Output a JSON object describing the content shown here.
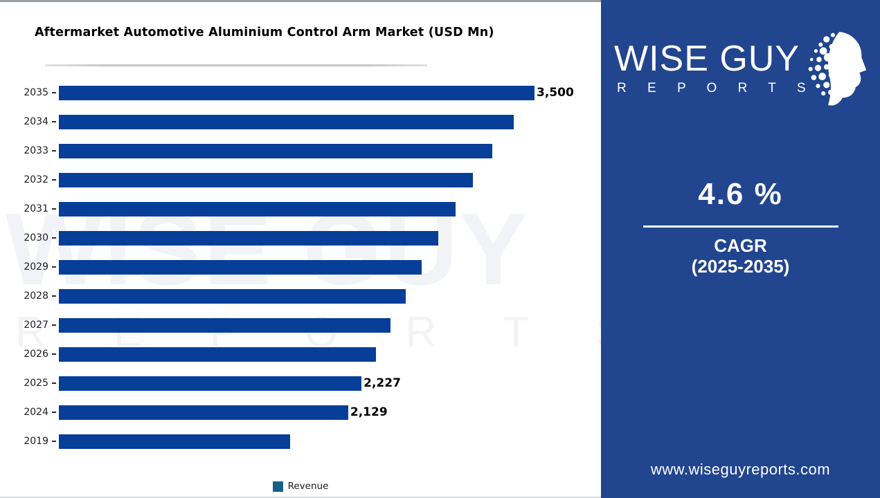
{
  "header": {
    "title": "Aftermarket Automotive Aluminium Control Arm Market (USD Mn)"
  },
  "chart_data": {
    "type": "bar",
    "orientation": "horizontal",
    "title": "Aftermarket Automotive Aluminium Control Arm Market (USD Mn)",
    "xlabel": "",
    "ylabel": "",
    "categories": [
      "2035",
      "2034",
      "2033",
      "2032",
      "2031",
      "2030",
      "2029",
      "2028",
      "2027",
      "2026",
      "2025",
      "2024",
      "2019"
    ],
    "series": [
      {
        "name": "Revenue",
        "values": [
          3500,
          3347,
          3191,
          3048,
          2919,
          2791,
          2668,
          2551,
          2439,
          2332,
          2227,
          2129,
          1702
        ]
      }
    ],
    "data_labels": [
      "3,500",
      "",
      "",
      "",
      "",
      "",
      "",
      "",
      "",
      "",
      "2,227",
      "2,129",
      ""
    ],
    "xlim": [
      0,
      3500
    ],
    "grid": "off",
    "bar_color": "#063E98",
    "legend": {
      "label": "Revenue",
      "color": "#166183",
      "position": "bottom-center"
    }
  },
  "side_panel": {
    "background_color": "#21458E",
    "brand": {
      "line1": "WISE GUY",
      "line2": "R E P O R T S"
    },
    "cagr_value": "4.6 %",
    "cagr_line1": "CAGR",
    "cagr_line2": "(2025-2035)",
    "website": "www.wiseguyreports.com"
  },
  "watermark": {
    "line1": "WISE GUY",
    "line2": "R E P O R T S"
  }
}
